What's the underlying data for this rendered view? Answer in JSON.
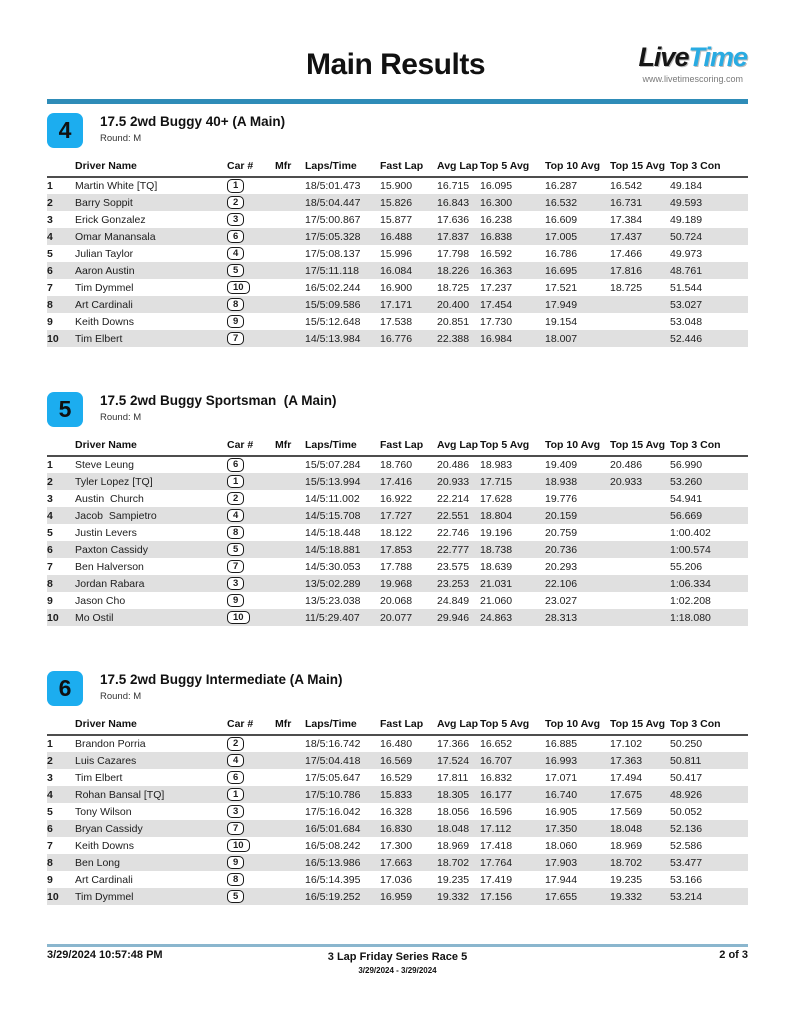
{
  "header": {
    "title": "Main Results",
    "logo": {
      "live": "Live",
      "time": "Time",
      "url": "www.livetimescoring.com"
    }
  },
  "colors": {
    "accent": "#1cadef",
    "rule_blue": "#2e8cb8",
    "footer_rule": "#8ab6ce",
    "logo_blue": "#29abe2",
    "stripe": "#e0e0e0"
  },
  "columns": [
    "Driver Name",
    "Car #",
    "Mfr",
    "Laps/Time",
    "Fast Lap",
    "Avg Lap",
    "Top 5 Avg",
    "Top 10 Avg",
    "Top 15 Avg",
    "Top 3 Con"
  ],
  "sections": [
    {
      "number": "4",
      "title": "17.5 2wd Buggy 40+ (A Main)",
      "round": "Round: M",
      "rows": [
        {
          "pos": "1",
          "driver": "Martin White [TQ]",
          "car": "1",
          "mfr": "",
          "laps_time": "18/5:01.473",
          "fast_lap": "15.900",
          "avg_lap": "16.715",
          "top5": "16.095",
          "top10": "16.287",
          "top15": "16.542",
          "top3_con": "49.184"
        },
        {
          "pos": "2",
          "driver": "Barry Soppit",
          "car": "2",
          "mfr": "",
          "laps_time": "18/5:04.447",
          "fast_lap": "15.826",
          "avg_lap": "16.843",
          "top5": "16.300",
          "top10": "16.532",
          "top15": "16.731",
          "top3_con": "49.593"
        },
        {
          "pos": "3",
          "driver": "Erick Gonzalez",
          "car": "3",
          "mfr": "",
          "laps_time": "17/5:00.867",
          "fast_lap": "15.877",
          "avg_lap": "17.636",
          "top5": "16.238",
          "top10": "16.609",
          "top15": "17.384",
          "top3_con": "49.189"
        },
        {
          "pos": "4",
          "driver": "Omar Manansala",
          "car": "6",
          "mfr": "",
          "laps_time": "17/5:05.328",
          "fast_lap": "16.488",
          "avg_lap": "17.837",
          "top5": "16.838",
          "top10": "17.005",
          "top15": "17.437",
          "top3_con": "50.724"
        },
        {
          "pos": "5",
          "driver": "Julian Taylor",
          "car": "4",
          "mfr": "",
          "laps_time": "17/5:08.137",
          "fast_lap": "15.996",
          "avg_lap": "17.798",
          "top5": "16.592",
          "top10": "16.786",
          "top15": "17.466",
          "top3_con": "49.973"
        },
        {
          "pos": "6",
          "driver": "Aaron Austin",
          "car": "5",
          "mfr": "",
          "laps_time": "17/5:11.118",
          "fast_lap": "16.084",
          "avg_lap": "18.226",
          "top5": "16.363",
          "top10": "16.695",
          "top15": "17.816",
          "top3_con": "48.761"
        },
        {
          "pos": "7",
          "driver": "Tim Dymmel",
          "car": "10",
          "mfr": "",
          "laps_time": "16/5:02.244",
          "fast_lap": "16.900",
          "avg_lap": "18.725",
          "top5": "17.237",
          "top10": "17.521",
          "top15": "18.725",
          "top3_con": "51.544"
        },
        {
          "pos": "8",
          "driver": "Art Cardinali",
          "car": "8",
          "mfr": "",
          "laps_time": "15/5:09.586",
          "fast_lap": "17.171",
          "avg_lap": "20.400",
          "top5": "17.454",
          "top10": "17.949",
          "top15": "",
          "top3_con": "53.027"
        },
        {
          "pos": "9",
          "driver": "Keith Downs",
          "car": "9",
          "mfr": "",
          "laps_time": "15/5:12.648",
          "fast_lap": "17.538",
          "avg_lap": "20.851",
          "top5": "17.730",
          "top10": "19.154",
          "top15": "",
          "top3_con": "53.048"
        },
        {
          "pos": "10",
          "driver": "Tim Elbert",
          "car": "7",
          "mfr": "",
          "laps_time": "14/5:13.984",
          "fast_lap": "16.776",
          "avg_lap": "22.388",
          "top5": "16.984",
          "top10": "18.007",
          "top15": "",
          "top3_con": "52.446"
        }
      ]
    },
    {
      "number": "5",
      "title": "17.5 2wd Buggy Sportsman  (A Main)",
      "round": "Round: M",
      "rows": [
        {
          "pos": "1",
          "driver": "Steve Leung",
          "car": "6",
          "mfr": "",
          "laps_time": "15/5:07.284",
          "fast_lap": "18.760",
          "avg_lap": "20.486",
          "top5": "18.983",
          "top10": "19.409",
          "top15": "20.486",
          "top3_con": "56.990"
        },
        {
          "pos": "2",
          "driver": "Tyler Lopez [TQ]",
          "car": "1",
          "mfr": "",
          "laps_time": "15/5:13.994",
          "fast_lap": "17.416",
          "avg_lap": "20.933",
          "top5": "17.715",
          "top10": "18.938",
          "top15": "20.933",
          "top3_con": "53.260"
        },
        {
          "pos": "3",
          "driver": "Austin  Church",
          "car": "2",
          "mfr": "",
          "laps_time": "14/5:11.002",
          "fast_lap": "16.922",
          "avg_lap": "22.214",
          "top5": "17.628",
          "top10": "19.776",
          "top15": "",
          "top3_con": "54.941"
        },
        {
          "pos": "4",
          "driver": "Jacob  Sampietro",
          "car": "4",
          "mfr": "",
          "laps_time": "14/5:15.708",
          "fast_lap": "17.727",
          "avg_lap": "22.551",
          "top5": "18.804",
          "top10": "20.159",
          "top15": "",
          "top3_con": "56.669"
        },
        {
          "pos": "5",
          "driver": "Justin Levers",
          "car": "8",
          "mfr": "",
          "laps_time": "14/5:18.448",
          "fast_lap": "18.122",
          "avg_lap": "22.746",
          "top5": "19.196",
          "top10": "20.759",
          "top15": "",
          "top3_con": "1:00.402"
        },
        {
          "pos": "6",
          "driver": "Paxton Cassidy",
          "car": "5",
          "mfr": "",
          "laps_time": "14/5:18.881",
          "fast_lap": "17.853",
          "avg_lap": "22.777",
          "top5": "18.738",
          "top10": "20.736",
          "top15": "",
          "top3_con": "1:00.574"
        },
        {
          "pos": "7",
          "driver": "Ben Halverson",
          "car": "7",
          "mfr": "",
          "laps_time": "14/5:30.053",
          "fast_lap": "17.788",
          "avg_lap": "23.575",
          "top5": "18.639",
          "top10": "20.293",
          "top15": "",
          "top3_con": "55.206"
        },
        {
          "pos": "8",
          "driver": "Jordan Rabara",
          "car": "3",
          "mfr": "",
          "laps_time": "13/5:02.289",
          "fast_lap": "19.968",
          "avg_lap": "23.253",
          "top5": "21.031",
          "top10": "22.106",
          "top15": "",
          "top3_con": "1:06.334"
        },
        {
          "pos": "9",
          "driver": "Jason Cho",
          "car": "9",
          "mfr": "",
          "laps_time": "13/5:23.038",
          "fast_lap": "20.068",
          "avg_lap": "24.849",
          "top5": "21.060",
          "top10": "23.027",
          "top15": "",
          "top3_con": "1:02.208"
        },
        {
          "pos": "10",
          "driver": "Mo Ostil",
          "car": "10",
          "mfr": "",
          "laps_time": "11/5:29.407",
          "fast_lap": "20.077",
          "avg_lap": "29.946",
          "top5": "24.863",
          "top10": "28.313",
          "top15": "",
          "top3_con": "1:18.080"
        }
      ]
    },
    {
      "number": "6",
      "title": "17.5 2wd Buggy Intermediate (A Main)",
      "round": "Round: M",
      "rows": [
        {
          "pos": "1",
          "driver": "Brandon Porria",
          "car": "2",
          "mfr": "",
          "laps_time": "18/5:16.742",
          "fast_lap": "16.480",
          "avg_lap": "17.366",
          "top5": "16.652",
          "top10": "16.885",
          "top15": "17.102",
          "top3_con": "50.250"
        },
        {
          "pos": "2",
          "driver": "Luis Cazares",
          "car": "4",
          "mfr": "",
          "laps_time": "17/5:04.418",
          "fast_lap": "16.569",
          "avg_lap": "17.524",
          "top5": "16.707",
          "top10": "16.993",
          "top15": "17.363",
          "top3_con": "50.811"
        },
        {
          "pos": "3",
          "driver": "Tim Elbert",
          "car": "6",
          "mfr": "",
          "laps_time": "17/5:05.647",
          "fast_lap": "16.529",
          "avg_lap": "17.811",
          "top5": "16.832",
          "top10": "17.071",
          "top15": "17.494",
          "top3_con": "50.417"
        },
        {
          "pos": "4",
          "driver": "Rohan Bansal [TQ]",
          "car": "1",
          "mfr": "",
          "laps_time": "17/5:10.786",
          "fast_lap": "15.833",
          "avg_lap": "18.305",
          "top5": "16.177",
          "top10": "16.740",
          "top15": "17.675",
          "top3_con": "48.926"
        },
        {
          "pos": "5",
          "driver": "Tony Wilson",
          "car": "3",
          "mfr": "",
          "laps_time": "17/5:16.042",
          "fast_lap": "16.328",
          "avg_lap": "18.056",
          "top5": "16.596",
          "top10": "16.905",
          "top15": "17.569",
          "top3_con": "50.052"
        },
        {
          "pos": "6",
          "driver": "Bryan Cassidy",
          "car": "7",
          "mfr": "",
          "laps_time": "16/5:01.684",
          "fast_lap": "16.830",
          "avg_lap": "18.048",
          "top5": "17.112",
          "top10": "17.350",
          "top15": "18.048",
          "top3_con": "52.136"
        },
        {
          "pos": "7",
          "driver": "Keith Downs",
          "car": "10",
          "mfr": "",
          "laps_time": "16/5:08.242",
          "fast_lap": "17.300",
          "avg_lap": "18.969",
          "top5": "17.418",
          "top10": "18.060",
          "top15": "18.969",
          "top3_con": "52.586"
        },
        {
          "pos": "8",
          "driver": "Ben Long",
          "car": "9",
          "mfr": "",
          "laps_time": "16/5:13.986",
          "fast_lap": "17.663",
          "avg_lap": "18.702",
          "top5": "17.764",
          "top10": "17.903",
          "top15": "18.702",
          "top3_con": "53.477"
        },
        {
          "pos": "9",
          "driver": "Art Cardinali",
          "car": "8",
          "mfr": "",
          "laps_time": "16/5:14.395",
          "fast_lap": "17.036",
          "avg_lap": "19.235",
          "top5": "17.419",
          "top10": "17.944",
          "top15": "19.235",
          "top3_con": "53.166"
        },
        {
          "pos": "10",
          "driver": "Tim Dymmel",
          "car": "5",
          "mfr": "",
          "laps_time": "16/5:19.252",
          "fast_lap": "16.959",
          "avg_lap": "19.332",
          "top5": "17.156",
          "top10": "17.655",
          "top15": "19.332",
          "top3_con": "53.214"
        }
      ]
    }
  ],
  "footer": {
    "printed": "3/29/2024 10:57:48 PM",
    "series": "3 Lap Friday Series Race 5",
    "date_range": "3/29/2024 - 3/29/2024",
    "page": "2 of 3"
  }
}
